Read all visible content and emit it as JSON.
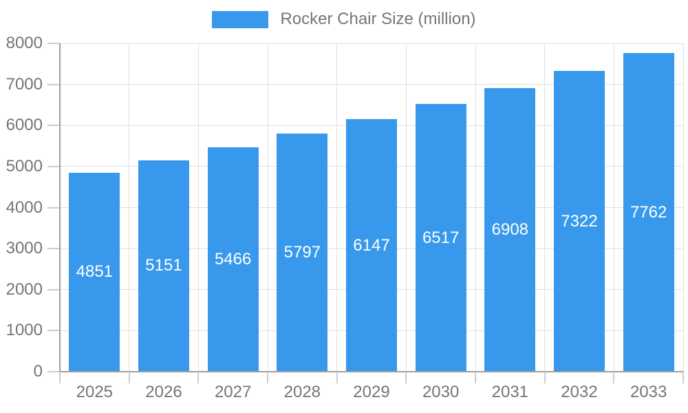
{
  "chart_data": {
    "type": "bar",
    "legend_label": "Rocker Chair Size (million)",
    "categories": [
      "2025",
      "2026",
      "2027",
      "2028",
      "2029",
      "2030",
      "2031",
      "2032",
      "2033"
    ],
    "values": [
      4851,
      5151,
      5466,
      5797,
      6147,
      6517,
      6908,
      7322,
      7762
    ],
    "series": [
      {
        "name": "Rocker Chair Size (million)",
        "values": [
          4851,
          5151,
          5466,
          5797,
          6147,
          6517,
          6908,
          7322,
          7762
        ]
      }
    ],
    "xlabel": "",
    "ylabel": "",
    "ylim": [
      0,
      8000
    ],
    "yticks": [
      0,
      1000,
      2000,
      3000,
      4000,
      5000,
      6000,
      7000,
      8000
    ],
    "grid": true,
    "legend_position": "top-center",
    "value_label_position": "inside-center"
  },
  "colors": {
    "bar": "#3899EC",
    "legend_text": "#757575",
    "axis_label": "#757575",
    "grid_line": "#E0E0E0",
    "axis_line": "#9E9E9E",
    "tick": "#CCCCCC",
    "value_label": "#FFFFFF",
    "background": "#FFFFFF"
  }
}
